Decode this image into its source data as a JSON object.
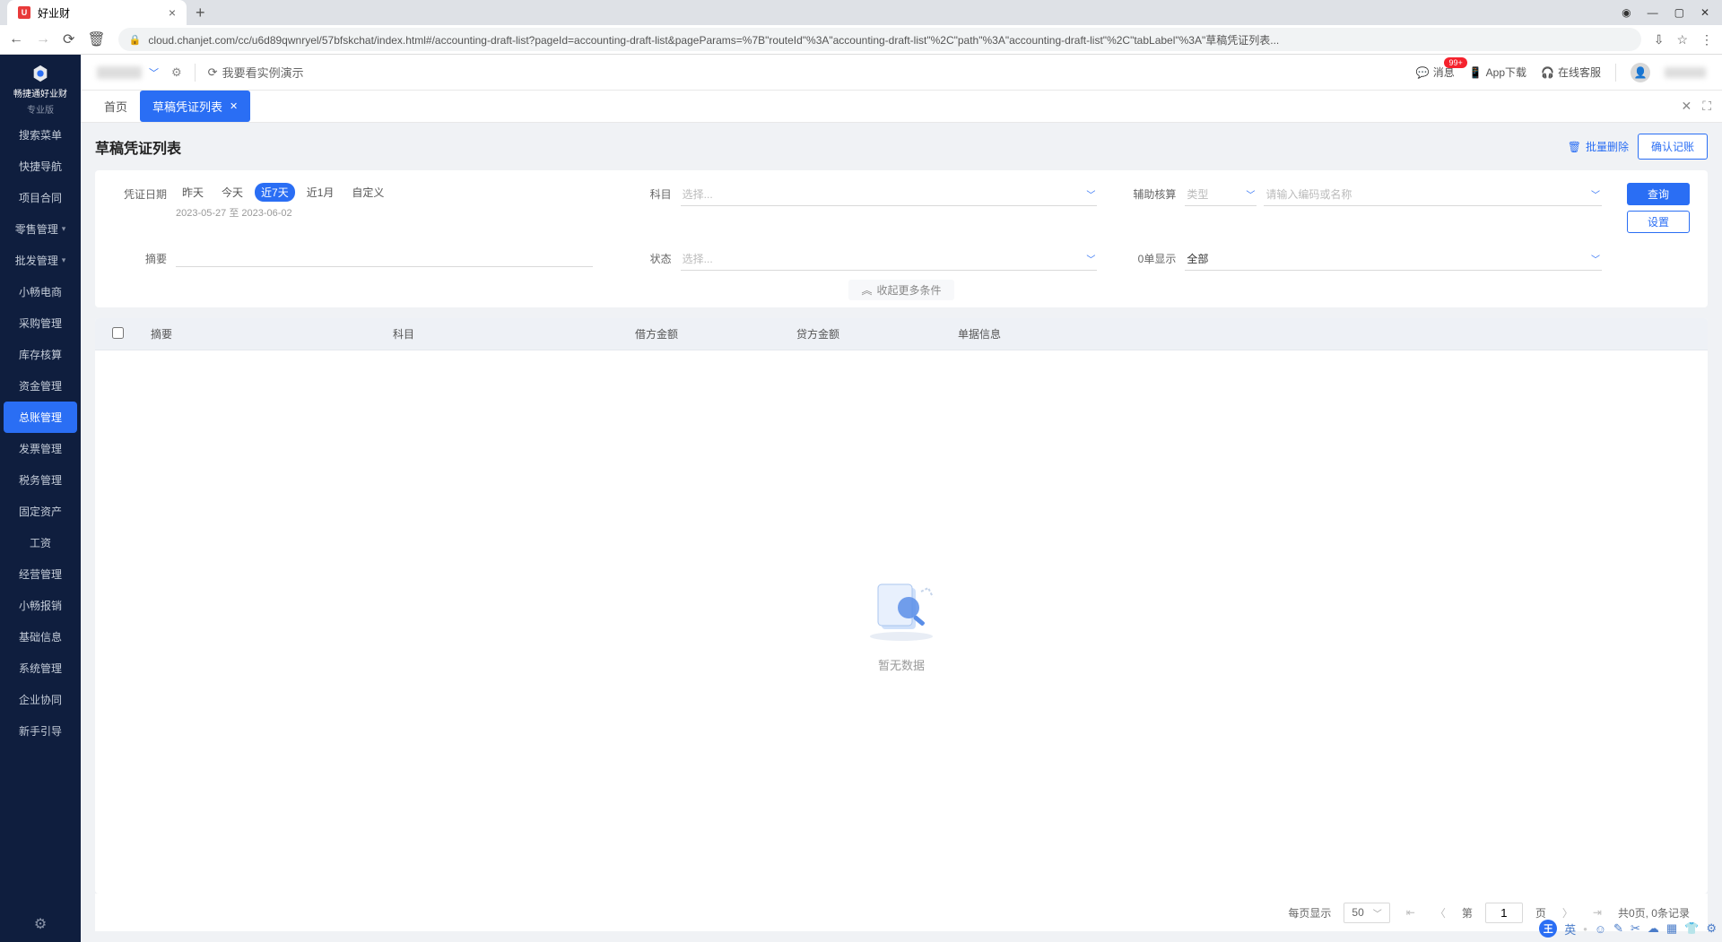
{
  "browser": {
    "tab_title": "好业财",
    "url": "cloud.chanjet.com/cc/u6d89qwnryel/57bfskchat/index.html#/accounting-draft-list?pageId=accounting-draft-list&pageParams=%7B\"routeId\"%3A\"accounting-draft-list\"%2C\"path\"%3A\"accounting-draft-list\"%2C\"tabLabel\"%3A\"草稿凭证列表..."
  },
  "sidebar": {
    "logo_text": "畅捷通好业财",
    "logo_sub": "专业版",
    "items": [
      {
        "label": "搜索菜单",
        "expandable": false
      },
      {
        "label": "快捷导航",
        "expandable": false
      },
      {
        "label": "项目合同",
        "expandable": false
      },
      {
        "label": "零售管理",
        "expandable": true
      },
      {
        "label": "批发管理",
        "expandable": true
      },
      {
        "label": "小畅电商",
        "expandable": false
      },
      {
        "label": "采购管理",
        "expandable": false
      },
      {
        "label": "库存核算",
        "expandable": false
      },
      {
        "label": "资金管理",
        "expandable": false
      },
      {
        "label": "总账管理",
        "expandable": false,
        "active": true
      },
      {
        "label": "发票管理",
        "expandable": false
      },
      {
        "label": "税务管理",
        "expandable": false
      },
      {
        "label": "固定资产",
        "expandable": false
      },
      {
        "label": "工资",
        "expandable": false
      },
      {
        "label": "经营管理",
        "expandable": false
      },
      {
        "label": "小畅报销",
        "expandable": false
      },
      {
        "label": "基础信息",
        "expandable": false
      },
      {
        "label": "系统管理",
        "expandable": false
      },
      {
        "label": "企业协同",
        "expandable": false
      },
      {
        "label": "新手引导",
        "expandable": false
      }
    ]
  },
  "topbar": {
    "demo_label": "我要看实例演示",
    "msg_label": "消息",
    "msg_badge": "99+",
    "download_label": "App下载",
    "service_label": "在线客服"
  },
  "tabs": {
    "home": "首页",
    "active": "草稿凭证列表"
  },
  "page": {
    "title": "草稿凭证列表",
    "batch_delete": "批量删除",
    "confirm": "确认记账"
  },
  "filters": {
    "date_label": "凭证日期",
    "date_opts": [
      "昨天",
      "今天",
      "近7天",
      "近1月",
      "自定义"
    ],
    "date_active_idx": 2,
    "date_range": "2023-05-27 至 2023-06-02",
    "subject_label": "科目",
    "subject_placeholder": "选择...",
    "aux_label": "辅助核算",
    "aux_type_placeholder": "类型",
    "aux_code_placeholder": "请输入编码或名称",
    "summary_label": "摘要",
    "status_label": "状态",
    "status_placeholder": "选择...",
    "zero_label": "0单显示",
    "zero_value": "全部",
    "query_btn": "查询",
    "settings_btn": "设置",
    "collapse": "收起更多条件"
  },
  "table": {
    "cols": {
      "summary": "摘要",
      "subject": "科目",
      "debit": "借方金额",
      "credit": "贷方金额",
      "doc": "单据信息"
    },
    "empty": "暂无数据"
  },
  "pager": {
    "per_page_label": "每页显示",
    "per_page_value": "50",
    "page_label_pre": "第",
    "page_value": "1",
    "page_label_post": "页",
    "total": "共0页, 0条记录"
  },
  "tray": {
    "ime": "英"
  }
}
